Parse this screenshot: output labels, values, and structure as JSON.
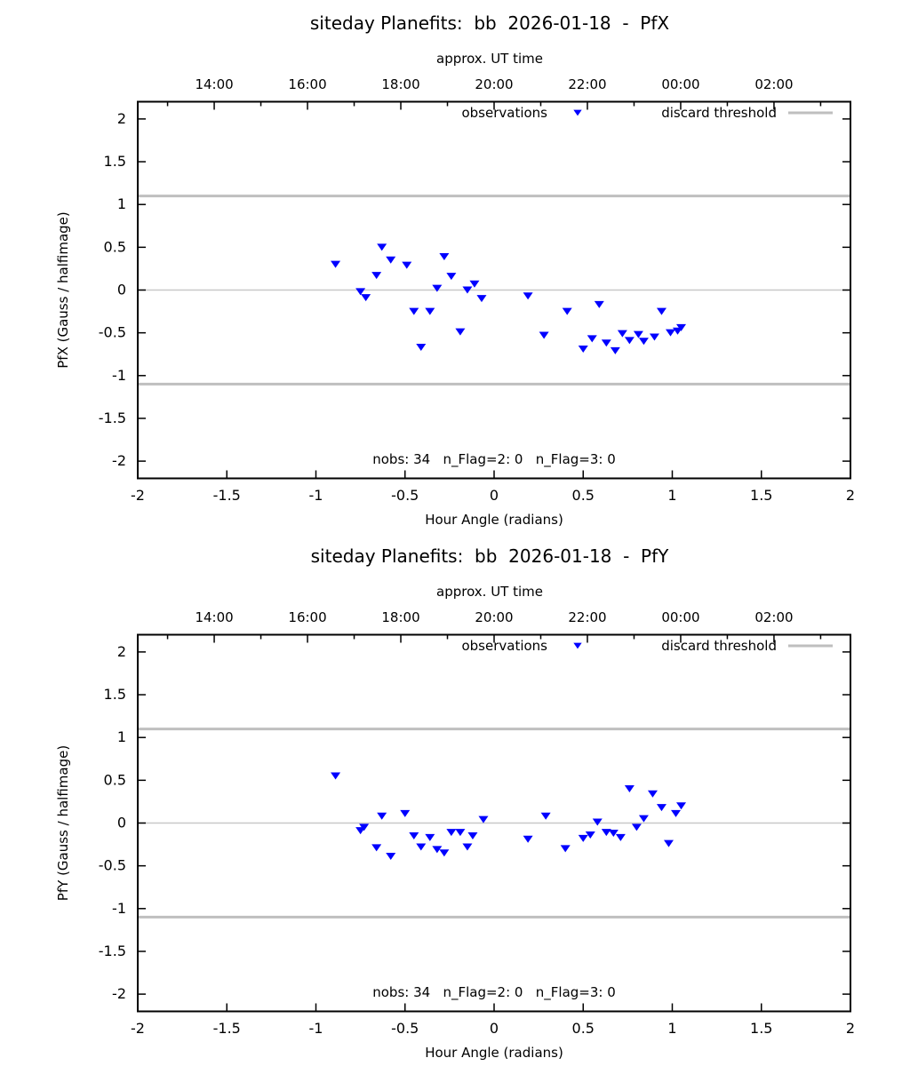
{
  "page": {
    "background": "#ffffff"
  },
  "colors": {
    "marker": "#0000ff",
    "threshold_line": "#bfbfbf",
    "zero_line": "#c8c8c8",
    "frame": "#000000",
    "text": "#000000"
  },
  "chart_data": [
    {
      "type": "scatter",
      "title": "siteday Planefits:  bb  2026-01-18  -  PfX",
      "x2label": "approx. UT time",
      "x2ticks": [
        {
          "hour": 14,
          "label": "14:00"
        },
        {
          "hour": 16,
          "label": "16:00"
        },
        {
          "hour": 18,
          "label": "18:00"
        },
        {
          "hour": 20,
          "label": "20:00"
        },
        {
          "hour": 22,
          "label": "22:00"
        },
        {
          "hour": 24,
          "label": "00:00"
        },
        {
          "hour": 26,
          "label": "02:00"
        }
      ],
      "xlabel": "Hour Angle (radians)",
      "ylabel": "PfX (Gauss / halfimage)",
      "xlim": [
        -2,
        2
      ],
      "ylim": [
        -2.2,
        2.2
      ],
      "grid": false,
      "legend_position": "top-inside",
      "xticks": [
        {
          "v": -2,
          "label": "-2"
        },
        {
          "v": -1.5,
          "label": "-1.5"
        },
        {
          "v": -1,
          "label": "-1"
        },
        {
          "v": -0.5,
          "label": "-0.5"
        },
        {
          "v": 0,
          "label": "0"
        },
        {
          "v": 0.5,
          "label": "0.5"
        },
        {
          "v": 1,
          "label": "1"
        },
        {
          "v": 1.5,
          "label": "1.5"
        },
        {
          "v": 2,
          "label": "2"
        }
      ],
      "yticks": [
        {
          "v": 2,
          "label": "2"
        },
        {
          "v": 1.5,
          "label": "1.5"
        },
        {
          "v": 1,
          "label": "1"
        },
        {
          "v": 0.5,
          "label": "0.5"
        },
        {
          "v": 0,
          "label": "0"
        },
        {
          "v": -0.5,
          "label": "-0.5"
        },
        {
          "v": -1,
          "label": "-1"
        },
        {
          "v": -1.5,
          "label": "-1.5"
        },
        {
          "v": -2,
          "label": "-2"
        }
      ],
      "threshold": 1.1,
      "zero_line": 0,
      "legend": [
        {
          "label": "observations",
          "sample": "point"
        },
        {
          "label": "discard threshold",
          "sample": "line"
        }
      ],
      "annotation": "nobs: 34   n_Flag=2: 0   n_Flag=3: 0",
      "nobs": 34,
      "points": [
        [
          -0.89,
          0.3
        ],
        [
          -0.75,
          -0.02
        ],
        [
          -0.72,
          -0.09
        ],
        [
          -0.66,
          0.17
        ],
        [
          -0.63,
          0.5
        ],
        [
          -0.58,
          0.35
        ],
        [
          -0.49,
          0.29
        ],
        [
          -0.45,
          -0.25
        ],
        [
          -0.41,
          -0.67
        ],
        [
          -0.36,
          -0.25
        ],
        [
          -0.32,
          0.02
        ],
        [
          -0.28,
          0.39
        ],
        [
          -0.24,
          0.16
        ],
        [
          -0.19,
          -0.49
        ],
        [
          -0.15,
          0.0
        ],
        [
          -0.11,
          0.07
        ],
        [
          -0.07,
          -0.1
        ],
        [
          0.19,
          -0.07
        ],
        [
          0.28,
          -0.53
        ],
        [
          0.41,
          -0.25
        ],
        [
          0.5,
          -0.69
        ],
        [
          0.55,
          -0.57
        ],
        [
          0.59,
          -0.17
        ],
        [
          0.63,
          -0.62
        ],
        [
          0.68,
          -0.71
        ],
        [
          0.72,
          -0.51
        ],
        [
          0.76,
          -0.59
        ],
        [
          0.81,
          -0.52
        ],
        [
          0.84,
          -0.6
        ],
        [
          0.9,
          -0.55
        ],
        [
          0.94,
          -0.25
        ],
        [
          0.99,
          -0.5
        ],
        [
          1.03,
          -0.48
        ],
        [
          1.05,
          -0.44
        ]
      ]
    },
    {
      "type": "scatter",
      "title": "siteday Planefits:  bb  2026-01-18  -  PfY",
      "x2label": "approx. UT time",
      "x2ticks": [
        {
          "hour": 14,
          "label": "14:00"
        },
        {
          "hour": 16,
          "label": "16:00"
        },
        {
          "hour": 18,
          "label": "18:00"
        },
        {
          "hour": 20,
          "label": "20:00"
        },
        {
          "hour": 22,
          "label": "22:00"
        },
        {
          "hour": 24,
          "label": "00:00"
        },
        {
          "hour": 26,
          "label": "02:00"
        }
      ],
      "xlabel": "Hour Angle (radians)",
      "ylabel": "PfY (Gauss / halfimage)",
      "xlim": [
        -2,
        2
      ],
      "ylim": [
        -2.2,
        2.2
      ],
      "grid": false,
      "legend_position": "top-inside",
      "xticks": [
        {
          "v": -2,
          "label": "-2"
        },
        {
          "v": -1.5,
          "label": "-1.5"
        },
        {
          "v": -1,
          "label": "-1"
        },
        {
          "v": -0.5,
          "label": "-0.5"
        },
        {
          "v": 0,
          "label": "0"
        },
        {
          "v": 0.5,
          "label": "0.5"
        },
        {
          "v": 1,
          "label": "1"
        },
        {
          "v": 1.5,
          "label": "1.5"
        },
        {
          "v": 2,
          "label": "2"
        }
      ],
      "yticks": [
        {
          "v": 2,
          "label": "2"
        },
        {
          "v": 1.5,
          "label": "1.5"
        },
        {
          "v": 1,
          "label": "1"
        },
        {
          "v": 0.5,
          "label": "0.5"
        },
        {
          "v": 0,
          "label": "0"
        },
        {
          "v": -0.5,
          "label": "-0.5"
        },
        {
          "v": -1,
          "label": "-1"
        },
        {
          "v": -1.5,
          "label": "-1.5"
        },
        {
          "v": -2,
          "label": "-2"
        }
      ],
      "threshold": 1.1,
      "zero_line": 0,
      "legend": [
        {
          "label": "observations",
          "sample": "point"
        },
        {
          "label": "discard threshold",
          "sample": "line"
        }
      ],
      "annotation": "nobs: 34   n_Flag=2: 0   n_Flag=3: 0",
      "nobs": 34,
      "points": [
        [
          -0.89,
          0.55
        ],
        [
          -0.75,
          -0.09
        ],
        [
          -0.73,
          -0.05
        ],
        [
          -0.66,
          -0.29
        ],
        [
          -0.63,
          0.08
        ],
        [
          -0.58,
          -0.39
        ],
        [
          -0.5,
          0.11
        ],
        [
          -0.45,
          -0.15
        ],
        [
          -0.41,
          -0.28
        ],
        [
          -0.36,
          -0.17
        ],
        [
          -0.32,
          -0.31
        ],
        [
          -0.28,
          -0.35
        ],
        [
          -0.24,
          -0.11
        ],
        [
          -0.19,
          -0.11
        ],
        [
          -0.15,
          -0.28
        ],
        [
          -0.12,
          -0.15
        ],
        [
          -0.06,
          0.04
        ],
        [
          0.19,
          -0.19
        ],
        [
          0.29,
          0.08
        ],
        [
          0.4,
          -0.3
        ],
        [
          0.5,
          -0.18
        ],
        [
          0.54,
          -0.14
        ],
        [
          0.58,
          0.01
        ],
        [
          0.63,
          -0.11
        ],
        [
          0.67,
          -0.12
        ],
        [
          0.71,
          -0.17
        ],
        [
          0.76,
          0.4
        ],
        [
          0.8,
          -0.05
        ],
        [
          0.84,
          0.05
        ],
        [
          0.89,
          0.34
        ],
        [
          0.94,
          0.18
        ],
        [
          0.98,
          -0.24
        ],
        [
          1.02,
          0.11
        ],
        [
          1.05,
          0.2
        ]
      ]
    }
  ]
}
